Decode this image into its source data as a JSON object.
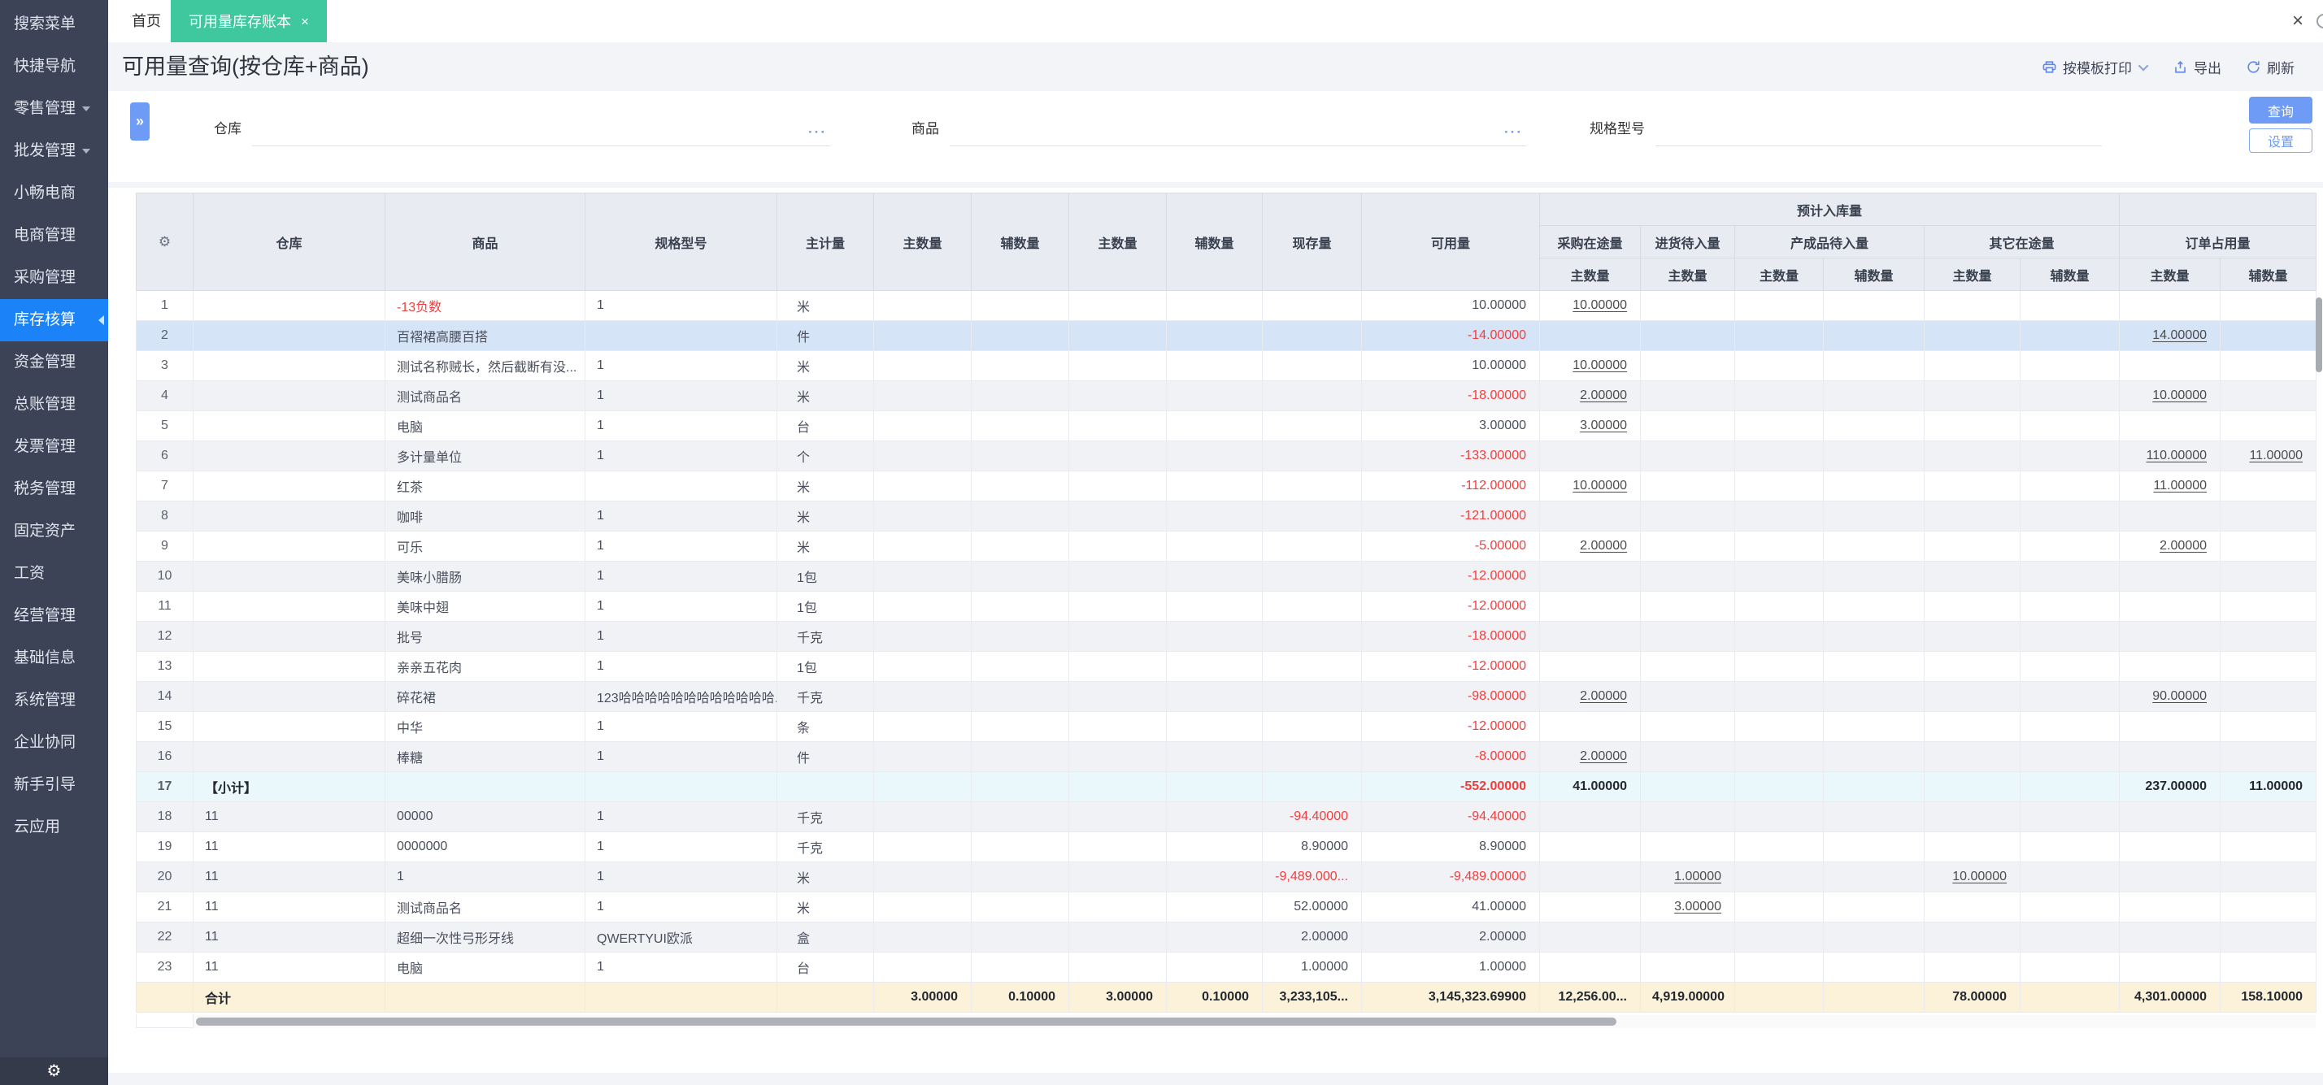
{
  "sidebar": {
    "items": [
      {
        "label": "搜索菜单"
      },
      {
        "label": "快捷导航"
      },
      {
        "label": "零售管理",
        "expandable": true
      },
      {
        "label": "批发管理",
        "expandable": true
      },
      {
        "label": "小畅电商"
      },
      {
        "label": "电商管理"
      },
      {
        "label": "采购管理"
      },
      {
        "label": "库存核算",
        "selected": true
      },
      {
        "label": "资金管理"
      },
      {
        "label": "总账管理"
      },
      {
        "label": "发票管理"
      },
      {
        "label": "税务管理"
      },
      {
        "label": "固定资产"
      },
      {
        "label": "工资"
      },
      {
        "label": "经营管理"
      },
      {
        "label": "基础信息"
      },
      {
        "label": "系统管理"
      },
      {
        "label": "企业协同"
      },
      {
        "label": "新手引导"
      },
      {
        "label": "云应用"
      }
    ],
    "footer_gear": "⚙"
  },
  "tabs": {
    "home": "首页",
    "active": "可用量库存账本",
    "close_icon": "×",
    "bar_close_icon": "×"
  },
  "page": {
    "title": "可用量查询(按仓库+商品)"
  },
  "toolbar": {
    "print": "按模板打印",
    "export": "导出",
    "refresh": "刷新",
    "print_icon": "printer-icon",
    "export_icon": "export-icon",
    "refresh_icon": "refresh-icon"
  },
  "filters": {
    "collapse_icon_char": "»",
    "warehouse_label": "仓库",
    "product_label": "商品",
    "spec_label": "规格型号",
    "query_button": "查询",
    "settings_button": "设置"
  },
  "table": {
    "column_keys": [
      "n",
      "wh",
      "prod",
      "spec",
      "unit",
      "q1",
      "f1",
      "q2",
      "f2",
      "stock",
      "avail",
      "po",
      "recv",
      "fgm",
      "fga",
      "otm",
      "ota",
      "som",
      "soa"
    ],
    "header": {
      "settings_icon": "⚙",
      "wh": "仓库",
      "prod": "商品",
      "spec": "规格型号",
      "unit": "主计量",
      "main_qty": "主数量",
      "aux_qty": "辅数量",
      "stock": "现存量",
      "avail": "可用量",
      "expected_in_group": "预计入库量",
      "po_transit": "采购在途量",
      "recv_pending": "进货待入量",
      "fg_pending": "产成品待入量",
      "other_transit": "其它在途量",
      "so_occupied": "订单占用量"
    },
    "rows": [
      {
        "n": "1",
        "cells": {
          "prod": "-13负数",
          "spec": "1",
          "unit": "米",
          "avail": "10.00000",
          "po": "10.00000"
        },
        "red": [
          "prod"
        ],
        "links": [
          "po"
        ]
      },
      {
        "n": "2",
        "type": "selected",
        "cells": {
          "prod": "百褶裙高腰百搭",
          "unit": "件",
          "avail": "-14.00000",
          "som": "14.00000"
        },
        "red": [
          "avail"
        ],
        "links": [
          "som"
        ]
      },
      {
        "n": "3",
        "cells": {
          "prod": "测试名称贼长，然后截断有没...",
          "spec": "1",
          "unit": "米",
          "avail": "10.00000",
          "po": "10.00000"
        },
        "links": [
          "po"
        ]
      },
      {
        "n": "4",
        "cells": {
          "prod": "测试商品名",
          "spec": "1",
          "unit": "米",
          "avail": "-18.00000",
          "po": "2.00000",
          "som": "10.00000"
        },
        "red": [
          "avail"
        ],
        "links": [
          "po",
          "som"
        ]
      },
      {
        "n": "5",
        "cells": {
          "prod": "电脑",
          "spec": "1",
          "unit": "台",
          "avail": "3.00000",
          "po": "3.00000"
        },
        "links": [
          "po"
        ]
      },
      {
        "n": "6",
        "cells": {
          "prod": "多计量单位",
          "spec": "1",
          "unit": "个",
          "avail": "-133.00000",
          "som": "110.00000",
          "soa": "11.00000"
        },
        "red": [
          "avail"
        ],
        "links": [
          "som",
          "soa"
        ]
      },
      {
        "n": "7",
        "cells": {
          "prod": "红茶",
          "unit": "米",
          "avail": "-112.00000",
          "po": "10.00000",
          "som": "11.00000"
        },
        "red": [
          "avail"
        ],
        "links": [
          "po",
          "som"
        ]
      },
      {
        "n": "8",
        "cells": {
          "prod": "咖啡",
          "spec": "1",
          "unit": "米",
          "avail": "-121.00000"
        },
        "red": [
          "avail"
        ]
      },
      {
        "n": "9",
        "cells": {
          "prod": "可乐",
          "spec": "1",
          "unit": "米",
          "avail": "-5.00000",
          "po": "2.00000",
          "som": "2.00000"
        },
        "red": [
          "avail"
        ],
        "links": [
          "po",
          "som"
        ]
      },
      {
        "n": "10",
        "cells": {
          "prod": "美味小腊肠",
          "spec": "1",
          "unit": "1包",
          "avail": "-12.00000"
        },
        "red": [
          "avail"
        ]
      },
      {
        "n": "11",
        "cells": {
          "prod": "美味中翅",
          "spec": "1",
          "unit": "1包",
          "avail": "-12.00000"
        },
        "red": [
          "avail"
        ]
      },
      {
        "n": "12",
        "cells": {
          "prod": "批号",
          "spec": "1",
          "unit": "千克",
          "avail": "-18.00000"
        },
        "red": [
          "avail"
        ]
      },
      {
        "n": "13",
        "cells": {
          "prod": "亲亲五花肉",
          "spec": "1",
          "unit": "1包",
          "avail": "-12.00000"
        },
        "red": [
          "avail"
        ]
      },
      {
        "n": "14",
        "cells": {
          "prod": "碎花裙",
          "spec": "123哈哈哈哈哈哈哈哈哈哈哈哈...",
          "unit": "千克",
          "avail": "-98.00000",
          "po": "2.00000",
          "som": "90.00000"
        },
        "red": [
          "avail"
        ],
        "links": [
          "po",
          "som"
        ]
      },
      {
        "n": "15",
        "cells": {
          "prod": "中华",
          "spec": "1",
          "unit": "条",
          "avail": "-12.00000"
        },
        "red": [
          "avail"
        ]
      },
      {
        "n": "16",
        "cells": {
          "prod": "棒糖",
          "spec": "1",
          "unit": "件",
          "avail": "-8.00000",
          "po": "2.00000"
        },
        "red": [
          "avail"
        ],
        "links": [
          "po"
        ]
      },
      {
        "n": "17",
        "type": "subtotal",
        "cells": {
          "wh": "【小计】",
          "avail": "-552.00000",
          "po": "41.00000",
          "som": "237.00000",
          "soa": "11.00000"
        },
        "red": [
          "avail"
        ]
      },
      {
        "n": "18",
        "cells": {
          "wh": "11",
          "prod": "00000",
          "spec": "1",
          "unit": "千克",
          "stock": "-94.40000",
          "avail": "-94.40000"
        },
        "red": [
          "stock",
          "avail"
        ]
      },
      {
        "n": "19",
        "cells": {
          "wh": "11",
          "prod": "0000000",
          "spec": "1",
          "unit": "千克",
          "stock": "8.90000",
          "avail": "8.90000"
        }
      },
      {
        "n": "20",
        "cells": {
          "wh": "11",
          "prod": "1",
          "spec": "1",
          "unit": "米",
          "stock": "-9,489.000...",
          "avail": "-9,489.00000",
          "recv": "1.00000",
          "otm": "10.00000"
        },
        "red": [
          "stock",
          "avail"
        ],
        "links": [
          "recv",
          "otm"
        ]
      },
      {
        "n": "21",
        "cells": {
          "wh": "11",
          "prod": "测试商品名",
          "spec": "1",
          "unit": "米",
          "stock": "52.00000",
          "avail": "41.00000",
          "recv": "3.00000"
        },
        "links": [
          "recv"
        ]
      },
      {
        "n": "22",
        "cells": {
          "wh": "11",
          "prod": "超细一次性弓形牙线",
          "spec": "QWERTYUI欧派",
          "unit": "盒",
          "stock": "2.00000",
          "avail": "2.00000"
        }
      },
      {
        "n": "23",
        "cells": {
          "wh": "11",
          "prod": "电脑",
          "spec": "1",
          "unit": "台",
          "stock": "1.00000",
          "avail": "1.00000"
        }
      },
      {
        "n": "",
        "type": "total",
        "cells": {
          "wh": "合计",
          "q1": "3.00000",
          "f1": "0.10000",
          "q2": "3.00000",
          "f2": "0.10000",
          "stock": "3,233,105...",
          "avail": "3,145,323.69900",
          "po": "12,256.00...",
          "recv": "4,919.00000",
          "otm": "78.00000",
          "som": "4,301.00000",
          "soa": "158.10000"
        }
      }
    ]
  },
  "colors": {
    "sidebar_bg": "#3d4357",
    "sidebar_selected": "#1b83f7",
    "active_tab": "#3fc89d",
    "accent_blue": "#6d9bf5",
    "negative_red": "#f23d3d",
    "header_bg": "#e9ebf3",
    "subtotal_bg": "#eaf7fb",
    "total_bg": "#fcf2da",
    "selected_row_bg": "#d6e4f8"
  }
}
